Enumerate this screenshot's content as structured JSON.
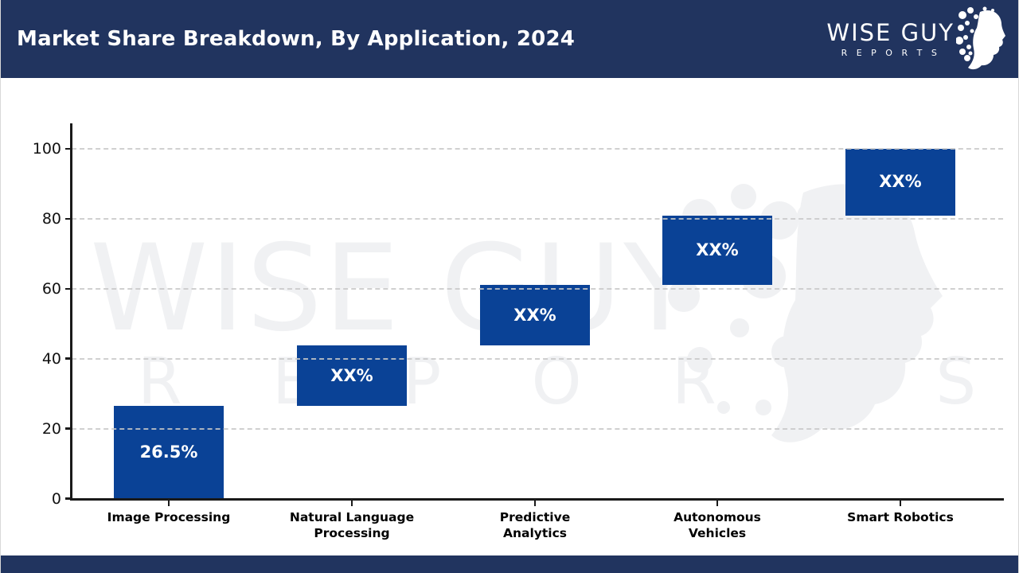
{
  "header": {
    "title": "Market Share Breakdown, By Application, 2024",
    "logo": {
      "line1": "WISE GUY",
      "line2": "R E P O R T S",
      "icon": "dotted-head-profile"
    }
  },
  "watermark": {
    "line1": "WISE GUY",
    "line2": "R E P O R T S",
    "icon": "dotted-head-profile"
  },
  "colors": {
    "navy": "#21345f",
    "bar_blue": "#0a4296",
    "grid_gray": "#d9d9d9",
    "axis_black": "#1a1a1a",
    "watermark_gray": "#f0f1f3",
    "value_label_white": "#ffffff"
  },
  "chart_data": {
    "type": "bar",
    "subtype": "waterfall",
    "title": "Market Share Breakdown, By Application, 2024",
    "xlabel": "",
    "ylabel": "",
    "ylim": [
      0,
      105
    ],
    "yticks": [
      0,
      20,
      40,
      60,
      80,
      100
    ],
    "grid": "horizontal-dashed",
    "legend": "none",
    "categories": [
      {
        "name": "Image Processing",
        "lines": [
          "Image Processing"
        ]
      },
      {
        "name": "Natural Language Processing",
        "lines": [
          "Natural Language",
          "Processing"
        ]
      },
      {
        "name": "Predictive Analytics",
        "lines": [
          "Predictive",
          "Analytics"
        ]
      },
      {
        "name": "Autonomous Vehicles",
        "lines": [
          "Autonomous",
          "Vehicles"
        ]
      },
      {
        "name": "Smart Robotics",
        "lines": [
          "Smart Robotics"
        ]
      }
    ],
    "segments": [
      {
        "category": "Image Processing",
        "start": 0,
        "end": 26.5,
        "value_label": "26.5%"
      },
      {
        "category": "Natural Language Processing",
        "start": 26.5,
        "end": 43.8,
        "value_label": "XX%"
      },
      {
        "category": "Predictive Analytics",
        "start": 43.8,
        "end": 61.0,
        "value_label": "XX%"
      },
      {
        "category": "Autonomous Vehicles",
        "start": 61.0,
        "end": 80.9,
        "value_label": "XX%"
      },
      {
        "category": "Smart Robotics",
        "start": 81.0,
        "end": 100.0,
        "value_label": "XX%"
      }
    ]
  }
}
